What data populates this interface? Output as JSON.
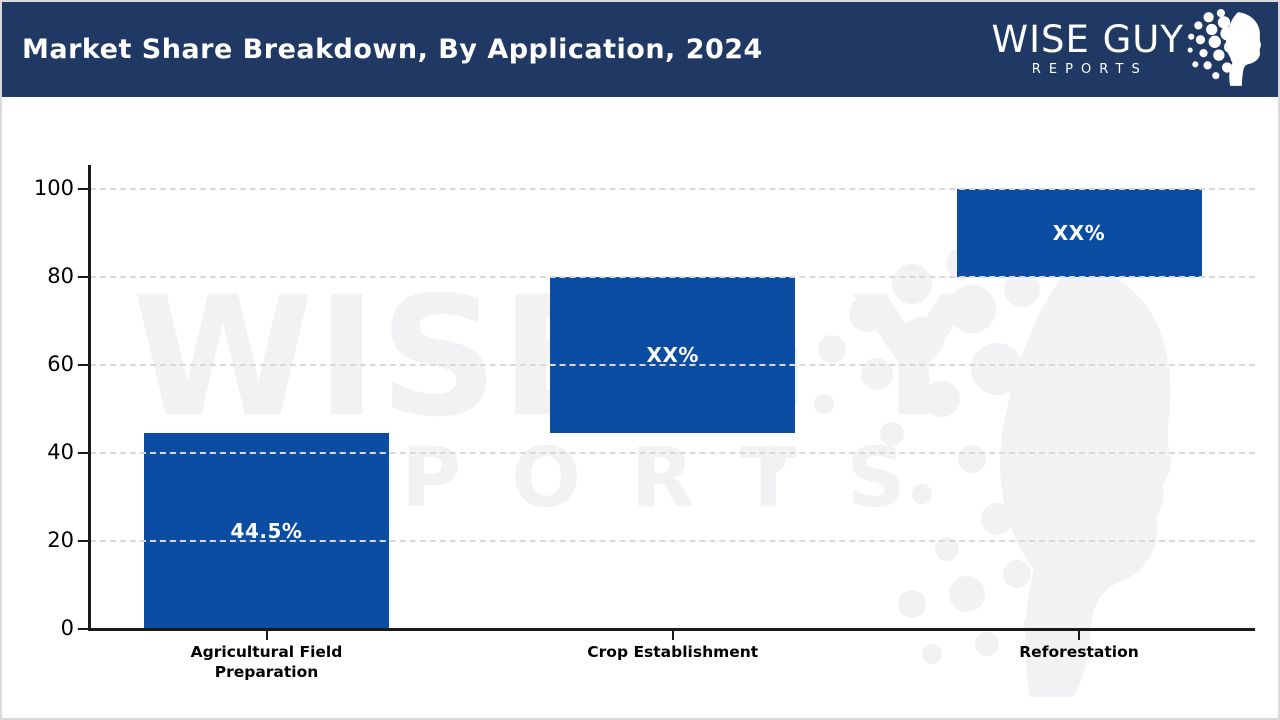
{
  "header": {
    "title": "Market Share Breakdown, By Application, 2024",
    "logo": {
      "name": "WISE GUY",
      "sub": "REPORTS"
    }
  },
  "watermark": {
    "line1": "WISE G",
    "line1b": "Y",
    "line2": "REPORTS"
  },
  "chart_data": {
    "type": "bar",
    "variant": "floating-waterfall",
    "title": "Market Share Breakdown, By Application, 2024",
    "categories": [
      "Agricultural Field Preparation",
      "Crop Establishment",
      "Reforestation"
    ],
    "bars": [
      {
        "category": "Agricultural Field Preparation",
        "start": 0,
        "end": 44.5,
        "label": "44.5%"
      },
      {
        "category": "Crop Establishment",
        "start": 44.5,
        "end": 80,
        "label": "XX%"
      },
      {
        "category": "Reforestation",
        "start": 80,
        "end": 100,
        "label": "XX%"
      }
    ],
    "ylim": [
      0,
      100
    ],
    "yticks": [
      0,
      20,
      40,
      60,
      80,
      100
    ],
    "xlabel": "",
    "ylabel": "",
    "legend": "none",
    "grid": "horizontal-dashed",
    "bar_color": "#0b4da2",
    "grid_color": "#d9d9d9",
    "header_color": "#1f3864"
  }
}
